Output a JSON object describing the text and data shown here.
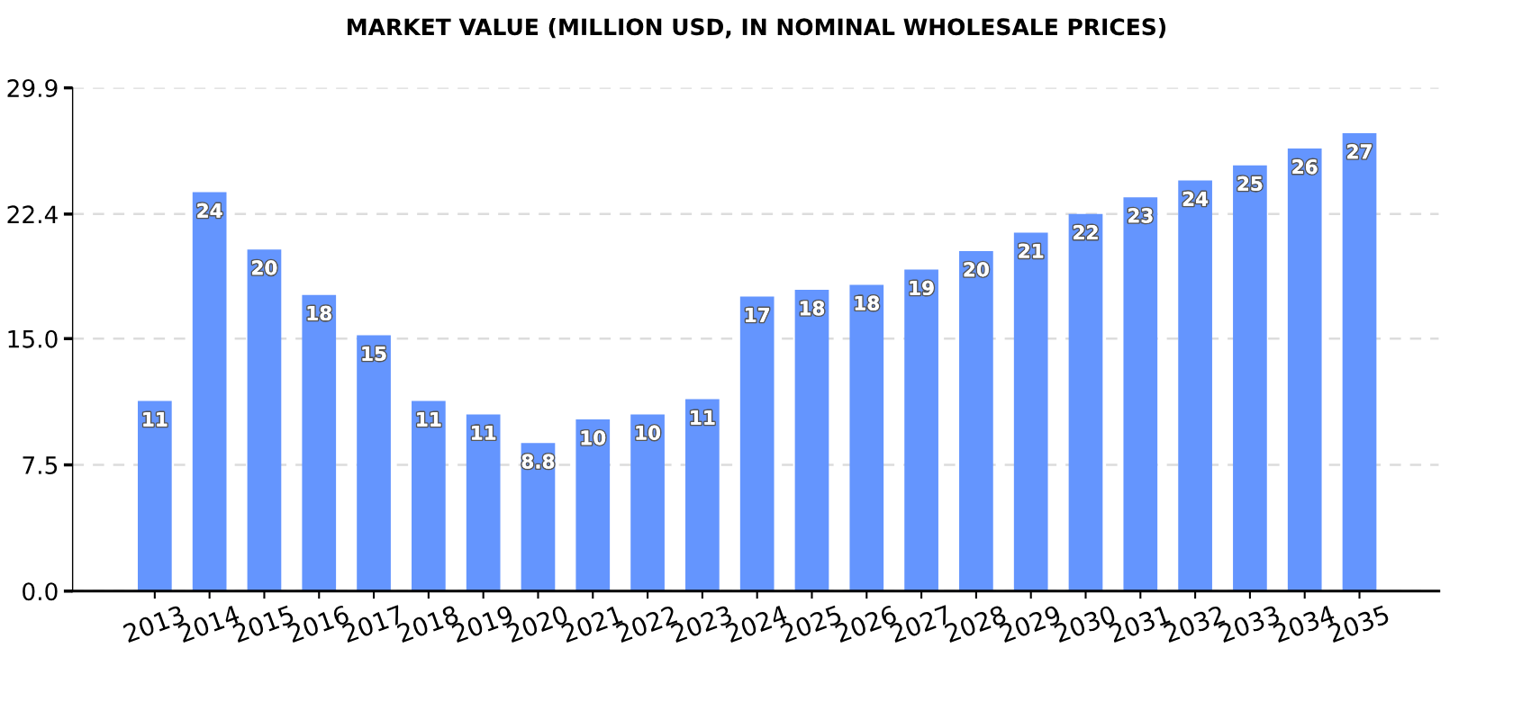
{
  "chart_data": {
    "type": "bar",
    "title": "MARKET VALUE (MILLION USD, IN NOMINAL WHOLESALE PRICES)",
    "categories": [
      "2013",
      "2014",
      "2015",
      "2016",
      "2017",
      "2018",
      "2019",
      "2020",
      "2021",
      "2022",
      "2023",
      "2024",
      "2025",
      "2026",
      "2027",
      "2028",
      "2029",
      "2030",
      "2031",
      "2032",
      "2033",
      "2034",
      "2035"
    ],
    "values": [
      11.3,
      23.7,
      20.3,
      17.6,
      15.2,
      11.3,
      10.5,
      8.8,
      10.2,
      10.5,
      11.4,
      17.5,
      17.9,
      18.2,
      19.1,
      20.2,
      21.3,
      22.4,
      23.4,
      24.4,
      25.3,
      26.3,
      27.2
    ],
    "value_labels": [
      "11",
      "24",
      "20",
      "18",
      "15",
      "11",
      "11",
      "8.8",
      "10",
      "10",
      "11",
      "17",
      "18",
      "18",
      "19",
      "20",
      "21",
      "22",
      "23",
      "24",
      "25",
      "26",
      "27"
    ],
    "color": "#6495fe",
    "ylim": [
      0,
      29.9
    ],
    "yticks": [
      {
        "value": 0,
        "label": "0.0"
      },
      7.5,
      {
        "value": 15,
        "label": "15.0"
      },
      22.4,
      29.9
    ],
    "grid": "y"
  }
}
